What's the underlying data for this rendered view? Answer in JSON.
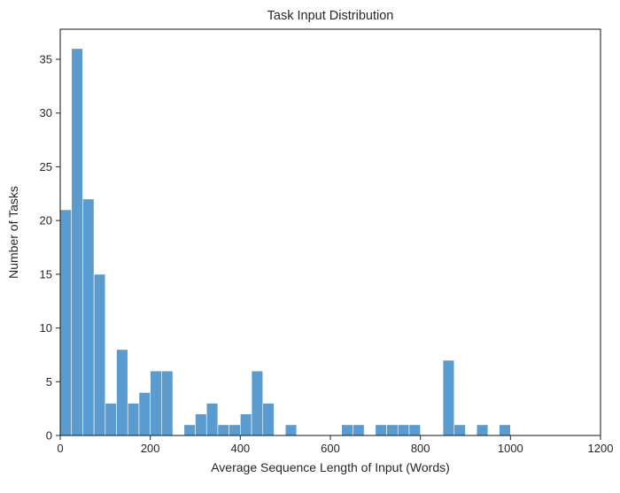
{
  "figure": {
    "background_color": "#ffffff",
    "spine_color": "#262626",
    "text_color": "#262626"
  },
  "chart_data": {
    "type": "bar",
    "subtype": "histogram",
    "title": "Task Input Distribution",
    "xlabel": "Average Sequence Length of Input (Words)",
    "ylabel": "Number of Tasks",
    "xlim": [
      0,
      1200
    ],
    "ylim": [
      0,
      37.8
    ],
    "xticks": [
      0,
      200,
      400,
      600,
      800,
      1000,
      1200
    ],
    "yticks": [
      0,
      5,
      10,
      15,
      20,
      25,
      30,
      35
    ],
    "grid": false,
    "legend": null,
    "bar_color": "#5B9CD0",
    "bar_edge_color": "#ffffff",
    "bin_width": 25,
    "bins": [
      {
        "start": 0,
        "count": 21
      },
      {
        "start": 25,
        "count": 36
      },
      {
        "start": 50,
        "count": 22
      },
      {
        "start": 75,
        "count": 15
      },
      {
        "start": 100,
        "count": 3
      },
      {
        "start": 125,
        "count": 8
      },
      {
        "start": 150,
        "count": 3
      },
      {
        "start": 175,
        "count": 4
      },
      {
        "start": 200,
        "count": 6
      },
      {
        "start": 225,
        "count": 6
      },
      {
        "start": 275,
        "count": 1
      },
      {
        "start": 300,
        "count": 2
      },
      {
        "start": 325,
        "count": 3
      },
      {
        "start": 350,
        "count": 1
      },
      {
        "start": 375,
        "count": 1
      },
      {
        "start": 400,
        "count": 2
      },
      {
        "start": 425,
        "count": 6
      },
      {
        "start": 450,
        "count": 3
      },
      {
        "start": 500,
        "count": 1
      },
      {
        "start": 625,
        "count": 1
      },
      {
        "start": 650,
        "count": 1
      },
      {
        "start": 700,
        "count": 1
      },
      {
        "start": 725,
        "count": 1
      },
      {
        "start": 750,
        "count": 1
      },
      {
        "start": 775,
        "count": 1
      },
      {
        "start": 850,
        "count": 7
      },
      {
        "start": 875,
        "count": 1
      },
      {
        "start": 925,
        "count": 1
      },
      {
        "start": 975,
        "count": 1
      }
    ]
  }
}
